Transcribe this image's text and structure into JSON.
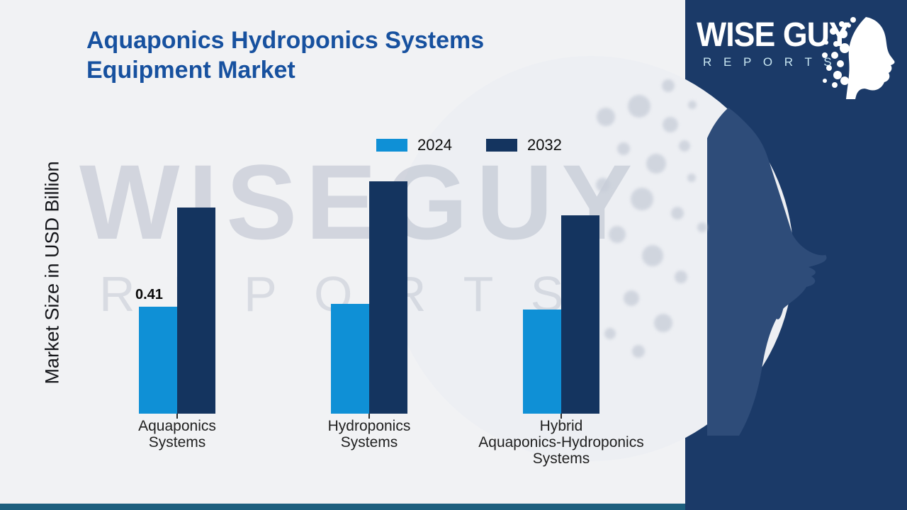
{
  "title": "Aquaponics Hydroponics Systems Equipment Market",
  "logo": {
    "brand_line1": "WISE GUY",
    "brand_line2": "R E P O R T S"
  },
  "watermark": {
    "line1": "WISEGUY",
    "line2": "R E P O R T S"
  },
  "colors": {
    "background": "#f1f2f4",
    "title_blue": "#17519F",
    "panel_navy": "#1B3A68",
    "bar_2024_blue": "#0F90D6",
    "bar_2032_navy": "#14345F",
    "footer_teal": "#1E5F7E"
  },
  "chart_data": {
    "type": "bar",
    "title": "Aquaponics Hydroponics Systems Equipment Market",
    "xlabel": "",
    "ylabel": "Market Size in USD Billion",
    "unit": "USD Billion",
    "categories": [
      "Aquaponics\nSystems",
      "Hydroponics\nSystems",
      "Hybrid\nAquaponics-Hydroponics\nSystems"
    ],
    "series": [
      {
        "name": "2024",
        "color": "#0F90D6",
        "values": [
          0.41,
          0.42,
          0.4
        ]
      },
      {
        "name": "2032",
        "color": "#14345F",
        "values": [
          0.79,
          0.89,
          0.76
        ]
      }
    ],
    "annotations": [
      {
        "series_index": 0,
        "category_index": 0,
        "text": "0.41"
      }
    ],
    "legend_position": "top-center",
    "grid": false,
    "ylim": [
      0,
      1.0
    ]
  }
}
